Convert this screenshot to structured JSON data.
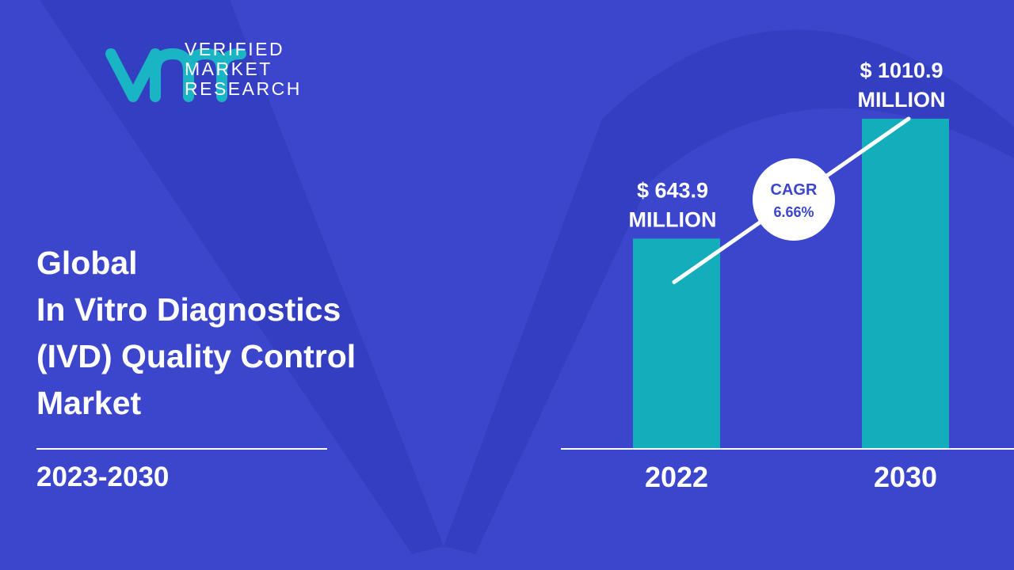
{
  "brand": {
    "line1": "VERIFIED",
    "line2": "MARKET",
    "line3": "RESEARCH",
    "teal": "#19b5c4",
    "icon": "vmr-logo-icon"
  },
  "headline": {
    "lines": [
      "Global",
      "In Vitro Diagnostics",
      "(IVD) Quality Control",
      "Market"
    ]
  },
  "forecast_period": "2023-2030",
  "colors": {
    "background": "#3b46cc",
    "background_shape": "#2f39b8",
    "bar": "#13adbc",
    "text": "#ffffff",
    "cagr_text": "#3b46cc"
  },
  "chart_data": {
    "type": "bar",
    "categories": [
      "2022",
      "2030"
    ],
    "values": [
      643.9,
      1010.9
    ],
    "value_labels": [
      [
        "$ 643.9",
        "MILLION"
      ],
      [
        "$ 1010.9",
        "MILLION"
      ]
    ],
    "cagr_label": "CAGR",
    "cagr_value": "6.66%",
    "title": "",
    "xlabel": "",
    "ylabel": "",
    "ylim": [
      0,
      1115
    ],
    "grid": false
  }
}
